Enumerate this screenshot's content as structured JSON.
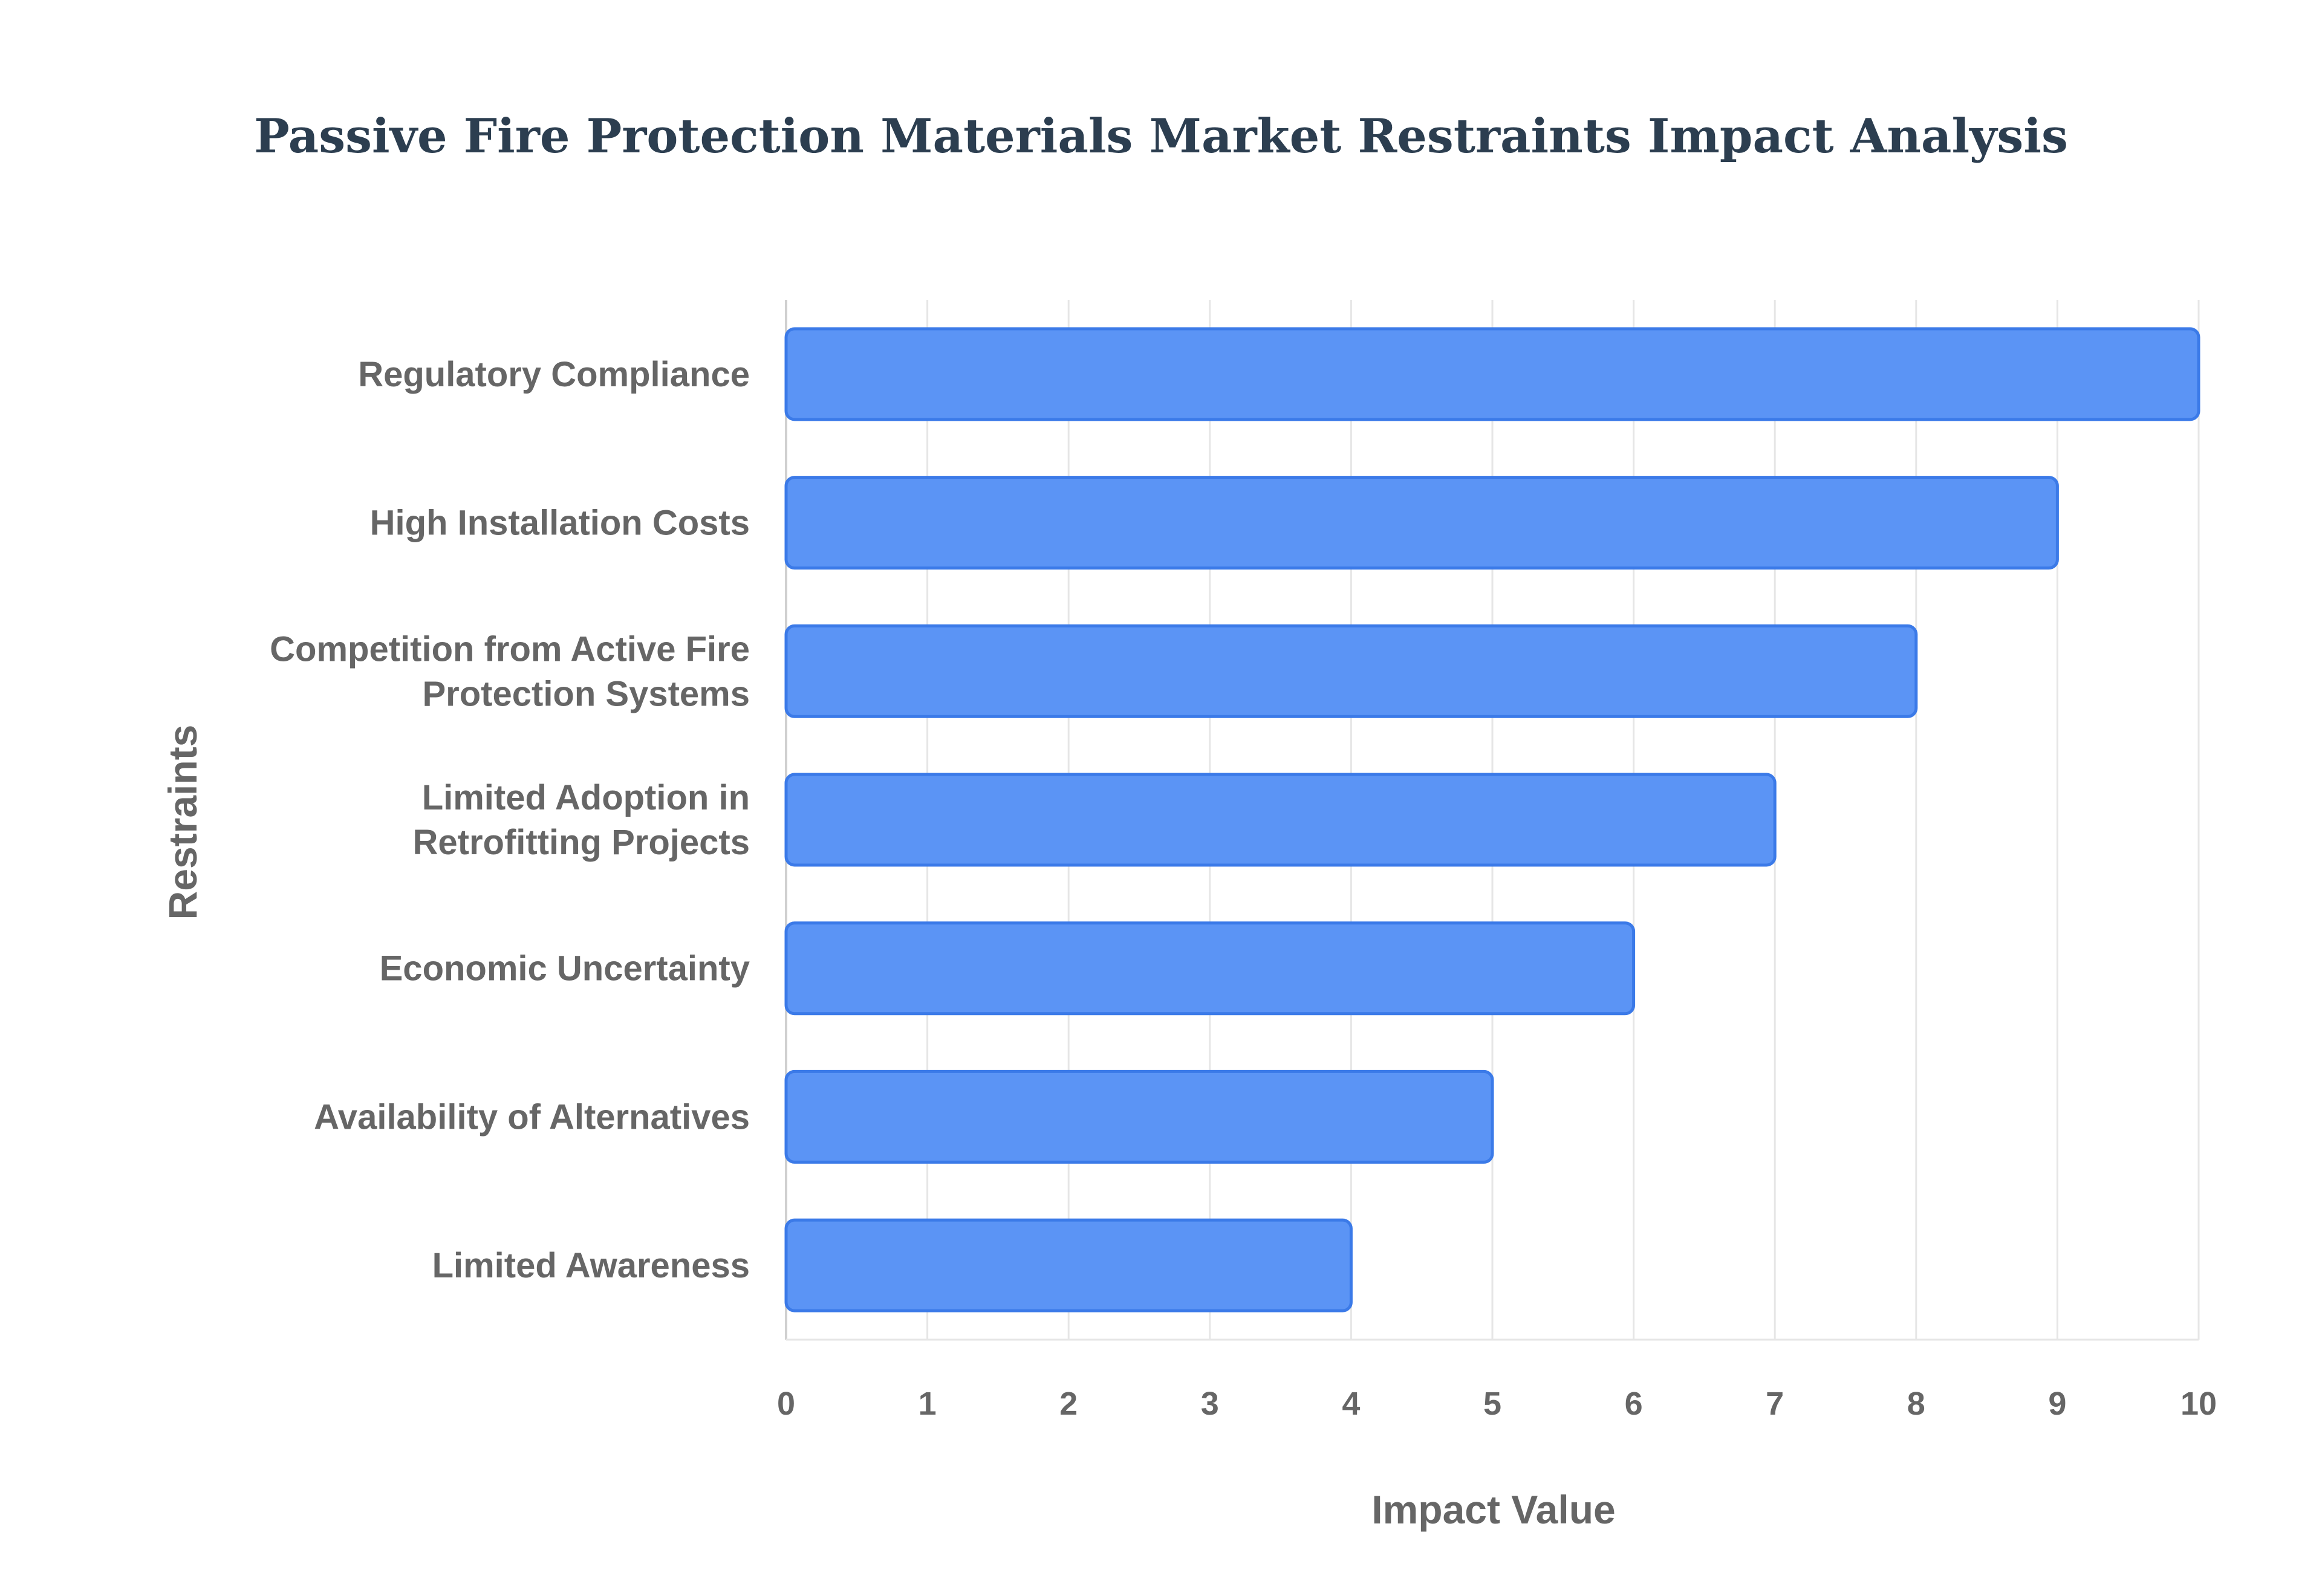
{
  "chart_data": {
    "type": "bar",
    "orientation": "horizontal",
    "title": "Passive Fire Protection Materials Market Restraints Impact Analysis",
    "xlabel": "Impact Value",
    "ylabel": "Restraints",
    "categories": [
      "Regulatory Compliance",
      "High Installation Costs",
      "Competition from Active Fire Protection Systems",
      "Limited Adoption in Retrofitting Projects",
      "Economic Uncertainty",
      "Availability of Alternatives",
      "Limited Awareness"
    ],
    "category_label_lines": [
      [
        "Regulatory Compliance"
      ],
      [
        "High Installation Costs"
      ],
      [
        "Competition from Active Fire",
        "Protection Systems"
      ],
      [
        "Limited Adoption in",
        "Retrofitting Projects"
      ],
      [
        "Economic Uncertainty"
      ],
      [
        "Availability of Alternatives"
      ],
      [
        "Limited Awareness"
      ]
    ],
    "values": [
      10,
      9,
      8,
      7,
      6,
      5,
      4
    ],
    "xlim": [
      0,
      10
    ],
    "xticks": [
      "0",
      "1",
      "2",
      "3",
      "4",
      "5",
      "6",
      "7",
      "8",
      "9",
      "10"
    ],
    "grid": true,
    "legend": "none",
    "colors": {
      "bar_fill": "#5b94f5",
      "bar_stroke": "#3b7ae8",
      "grid": "#e6e6e6",
      "axis_text": "#666666",
      "title": "#2c3e50"
    }
  }
}
